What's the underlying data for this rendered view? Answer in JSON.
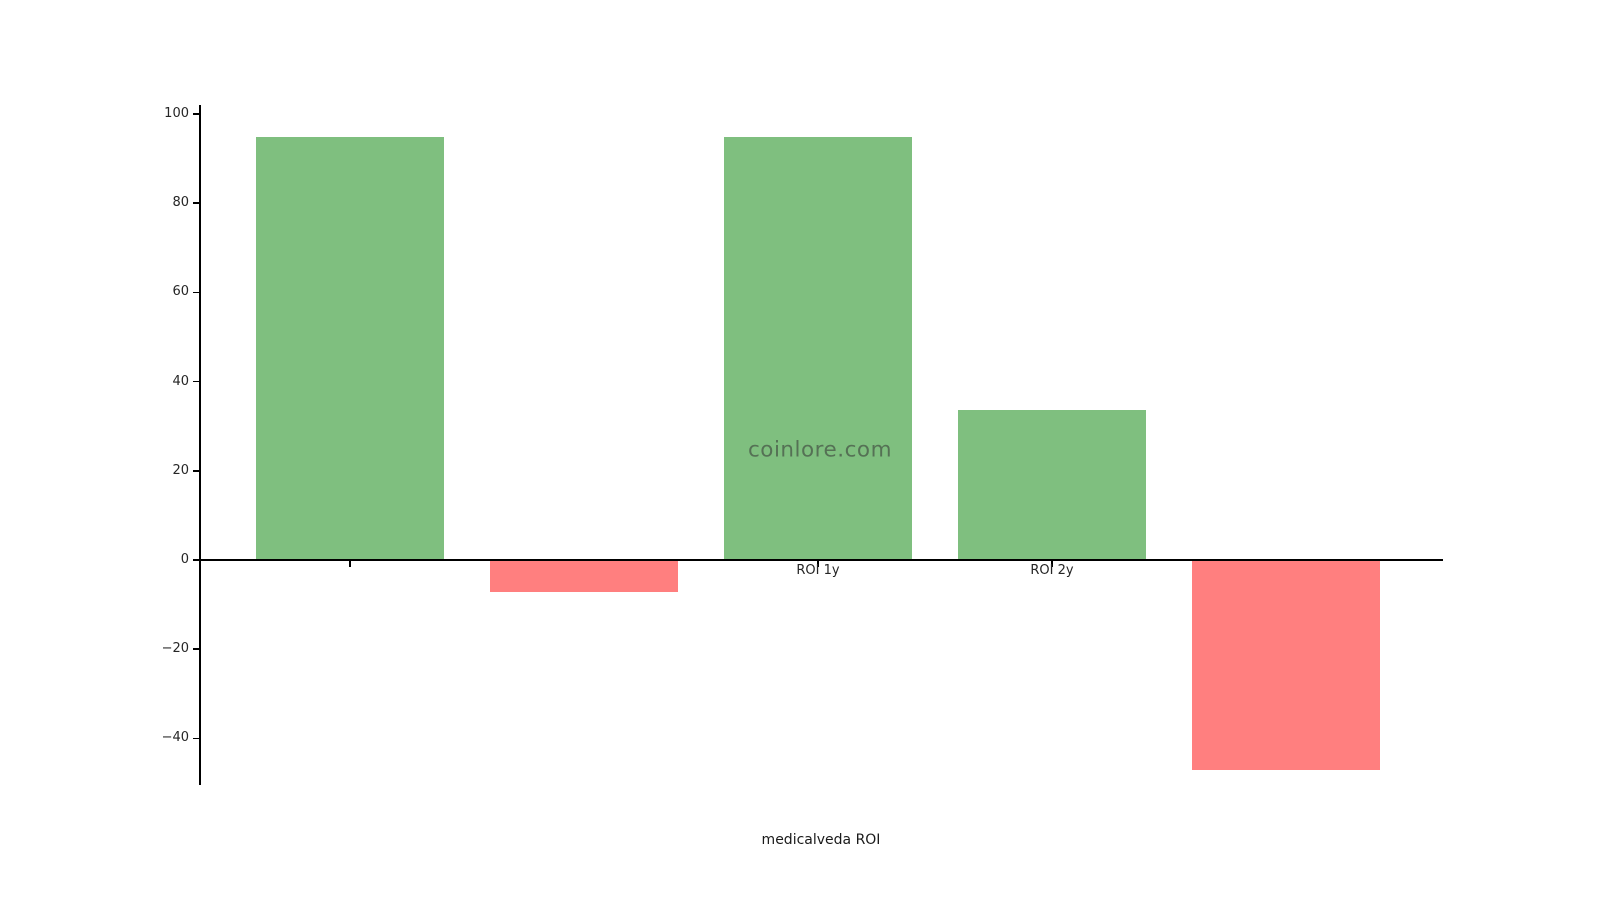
{
  "chart_data": {
    "type": "bar",
    "title": "medicalveda ROI",
    "watermark": "coinlore.com",
    "categories": [
      "",
      "",
      "ROI 1y",
      "ROI 2y",
      ""
    ],
    "values": [
      94.8,
      -6.9,
      94.8,
      33.6,
      -46.9
    ],
    "yticks": [
      100,
      80,
      60,
      40,
      20,
      0,
      -20,
      -40
    ],
    "ylim": [
      -50.5,
      102
    ],
    "xlabel": "",
    "ylabel": "",
    "grid": false,
    "legend_position": "none",
    "bar_color_positive": "#7fbf7f",
    "bar_color_negative": "#ff7f7f",
    "axis_color": "#000000",
    "tick_text_color": "#262626",
    "watermark_color": "#333333",
    "title_color": "#1a1a1a"
  }
}
